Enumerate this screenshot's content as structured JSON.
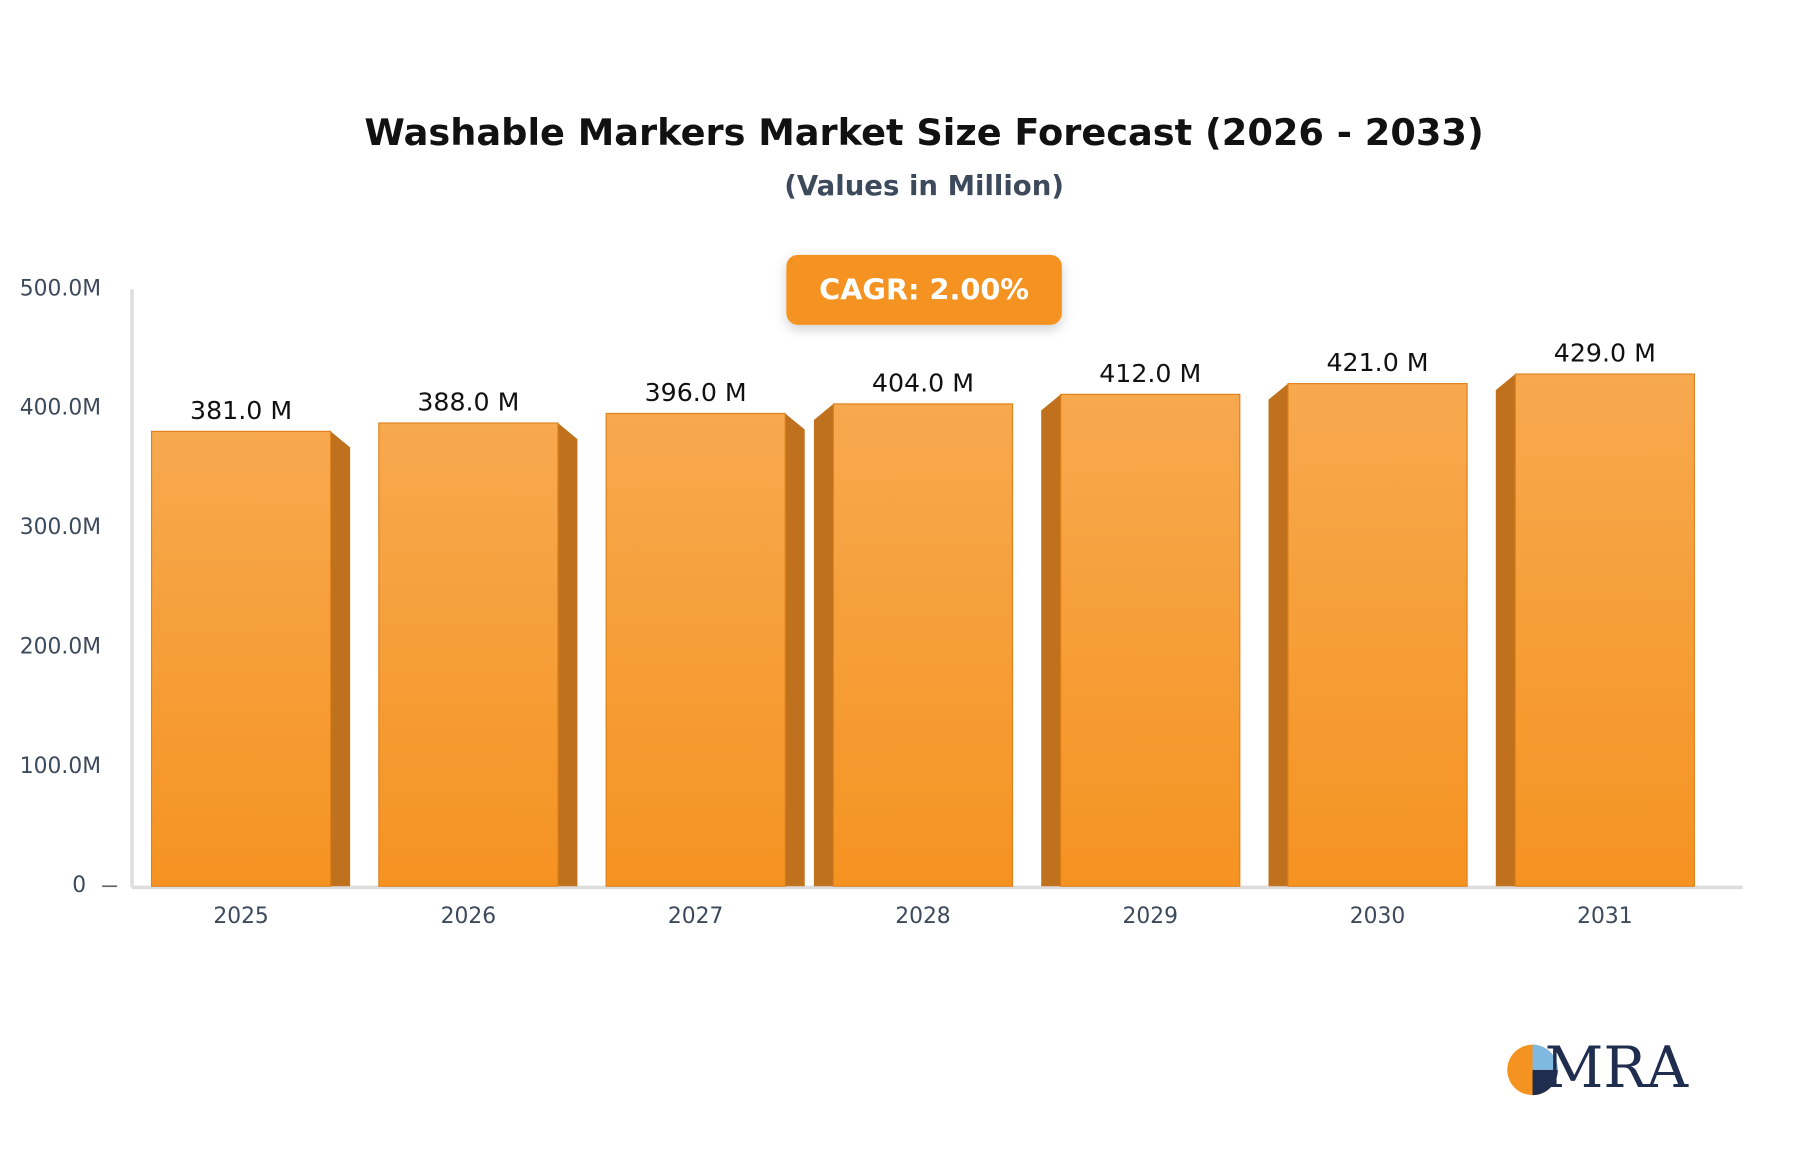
{
  "chart_data": {
    "type": "bar",
    "title": "Washable Markers Market Size Forecast (2026 - 2033)",
    "subtitle": "(Values in Million)",
    "annotation": "CAGR: 2.00%",
    "logo": "MRA",
    "categories": [
      "2025",
      "2026",
      "2027",
      "2028",
      "2029",
      "2030",
      "2031"
    ],
    "values": [
      381,
      388,
      396,
      404,
      412,
      421,
      429
    ],
    "value_labels": [
      "381.0 M",
      "388.0 M",
      "396.0 M",
      "404.0 M",
      "412.0 M",
      "421.0 M",
      "429.0 M"
    ],
    "color": "#f59a2e",
    "ylim": [
      0,
      500
    ],
    "yticks": [
      0,
      {
        "value": 100,
        "label": "100.0M"
      },
      {
        "value": 200,
        "label": "200.0M"
      },
      {
        "value": 300,
        "label": "300.0M"
      },
      {
        "value": 400,
        "label": "400.0M"
      },
      {
        "value": 500,
        "label": "500.0M"
      }
    ],
    "grid": false
  }
}
